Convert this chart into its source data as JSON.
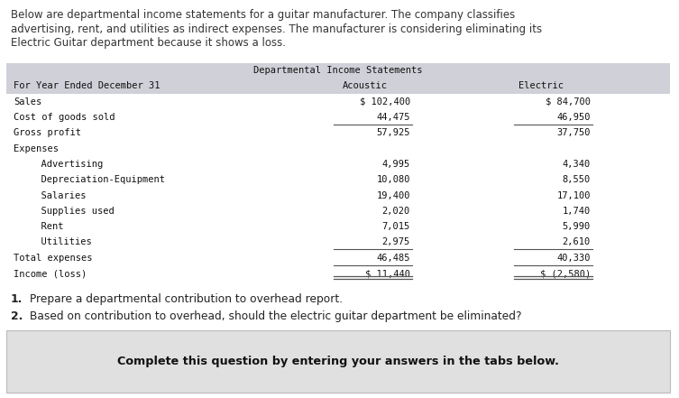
{
  "intro_lines": [
    "Below are departmental income statements for a guitar manufacturer. The company classifies",
    "advertising, rent, and utilities as indirect expenses. The manufacturer is considering eliminating its",
    "Electric Guitar department because it shows a loss."
  ],
  "table_title": "Departmental Income Statements",
  "col_header_label": "For Year Ended December 31",
  "col1_header": "Acoustic",
  "col2_header": "Electric",
  "rows": [
    {
      "label": "Sales",
      "indent": false,
      "val1": "$ 102,400",
      "val2": "$ 84,700",
      "underline_above": false,
      "underline_below": false,
      "double_below": false
    },
    {
      "label": "Cost of goods sold",
      "indent": false,
      "val1": "44,475",
      "val2": "46,950",
      "underline_above": false,
      "underline_below": true,
      "double_below": false
    },
    {
      "label": "Gross profit",
      "indent": false,
      "val1": "57,925",
      "val2": "37,750",
      "underline_above": false,
      "underline_below": false,
      "double_below": false
    },
    {
      "label": "Expenses",
      "indent": false,
      "val1": "",
      "val2": "",
      "underline_above": false,
      "underline_below": false,
      "double_below": false
    },
    {
      "label": "  Advertising",
      "indent": true,
      "val1": "4,995",
      "val2": "4,340",
      "underline_above": false,
      "underline_below": false,
      "double_below": false
    },
    {
      "label": "  Depreciation-Equipment",
      "indent": true,
      "val1": "10,080",
      "val2": "8,550",
      "underline_above": false,
      "underline_below": false,
      "double_below": false
    },
    {
      "label": "  Salaries",
      "indent": true,
      "val1": "19,400",
      "val2": "17,100",
      "underline_above": false,
      "underline_below": false,
      "double_below": false
    },
    {
      "label": "  Supplies used",
      "indent": true,
      "val1": "2,020",
      "val2": "1,740",
      "underline_above": false,
      "underline_below": false,
      "double_below": false
    },
    {
      "label": "  Rent",
      "indent": true,
      "val1": "7,015",
      "val2": "5,990",
      "underline_above": false,
      "underline_below": false,
      "double_below": false
    },
    {
      "label": "  Utilities",
      "indent": true,
      "val1": "2,975",
      "val2": "2,610",
      "underline_above": false,
      "underline_below": true,
      "double_below": false
    },
    {
      "label": "Total expenses",
      "indent": false,
      "val1": "46,485",
      "val2": "40,330",
      "underline_above": false,
      "underline_below": true,
      "double_below": false
    },
    {
      "label": "Income (loss)",
      "indent": false,
      "val1": "$ 11,440",
      "val2": "$ (2,580)",
      "underline_above": false,
      "underline_below": false,
      "double_below": true
    }
  ],
  "footer_q1_bold": "1.",
  "footer_q1_rest": " Prepare a departmental contribution to overhead report.",
  "footer_q2_bold": "2.",
  "footer_q2_rest": " Based on contribution to overhead, should the electric guitar department be eliminated?",
  "bottom_box_text": "Complete this question by entering your answers in the tabs below.",
  "table_header_bg": "#d0d0d8",
  "table_row_bg": "#ffffff",
  "bottom_box_bg": "#e0e0e0",
  "line_color": "#555555",
  "bg_color": "#ffffff",
  "mono_font": "monospace",
  "sans_font": "DejaVu Sans"
}
